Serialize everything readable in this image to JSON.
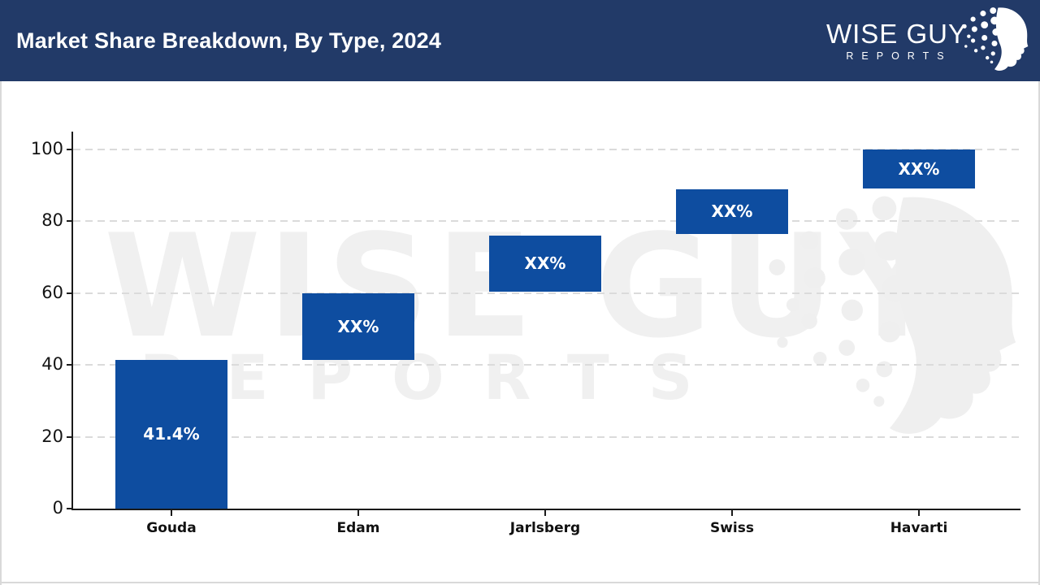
{
  "header": {
    "title": "Market Share Breakdown, By Type, 2024",
    "logo": {
      "line1": "WISE GUY",
      "line2": "REPORTS"
    }
  },
  "watermark": {
    "line1": "WISE GUY",
    "line2": "REPORTS"
  },
  "colors": {
    "header_bg": "#223A68",
    "bar": "#0E4DA0",
    "grid": "#DBDBDB",
    "axis": "#1A1A1A",
    "watermark": "#F0F0F0",
    "bar_label": "#FFFFFF"
  },
  "chart_data": {
    "type": "bar",
    "subtype": "waterfall",
    "title": "Market Share Breakdown, By Type, 2024",
    "xlabel": "",
    "ylabel": "",
    "categories": [
      "Gouda",
      "Edam",
      "Jarlsberg",
      "Swiss",
      "Havarti"
    ],
    "segments": [
      {
        "category": "Gouda",
        "start": 0,
        "end": 41.4,
        "label": "41.4%"
      },
      {
        "category": "Edam",
        "start": 41.4,
        "end": 60.0,
        "label": "XX%"
      },
      {
        "category": "Jarlsberg",
        "start": 60.5,
        "end": 76.0,
        "label": "XX%"
      },
      {
        "category": "Swiss",
        "start": 76.5,
        "end": 89.0,
        "label": "XX%"
      },
      {
        "category": "Havarti",
        "start": 89.2,
        "end": 100.0,
        "label": "XX%"
      }
    ],
    "yticks": [
      0,
      20,
      40,
      60,
      80,
      100
    ],
    "ylim": [
      0,
      105
    ],
    "grid": "horizontal-dashed",
    "legend": "none"
  }
}
